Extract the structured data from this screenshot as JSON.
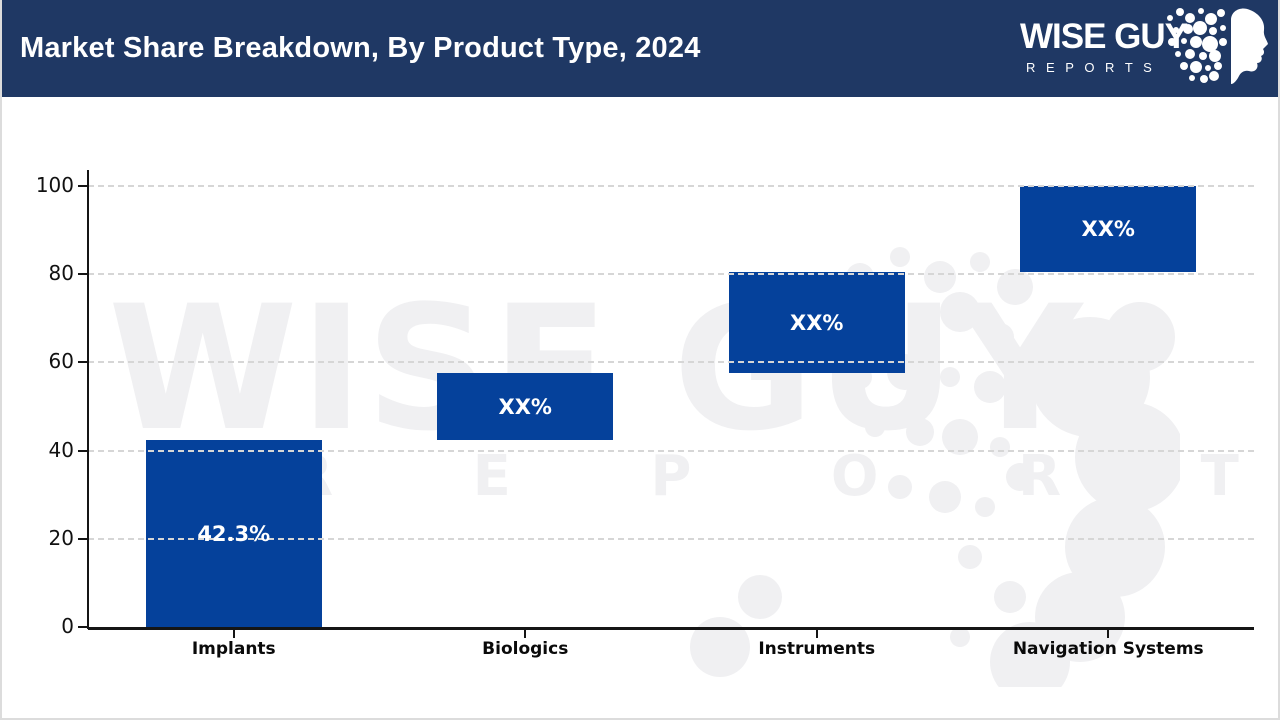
{
  "header": {
    "title": "Market Share Breakdown, By Product Type, 2024",
    "logo": {
      "line1": "WISE GUY",
      "line2": "R E P O R T S",
      "icon": "head-profile-dots-icon"
    },
    "bg_color": "#1f3864"
  },
  "watermark": {
    "line1": "WISE GUY",
    "line2": "R E P O R T S",
    "icon": "head-profile-dots-watermark"
  },
  "chart_data": {
    "type": "waterfall-bar",
    "title": "Market Share Breakdown, By Product Type, 2024",
    "categories": [
      "Implants",
      "Biologics",
      "Instruments",
      "Navigation Systems"
    ],
    "segments": [
      {
        "category": "Implants",
        "start": 0,
        "end": 42.3,
        "label": "42.3%"
      },
      {
        "category": "Biologics",
        "start": 42.3,
        "end": 57.5,
        "label": "XX%"
      },
      {
        "category": "Instruments",
        "start": 57.5,
        "end": 80.5,
        "label": "XX%"
      },
      {
        "category": "Navigation Systems",
        "start": 80.5,
        "end": 100,
        "label": "XX%"
      }
    ],
    "yticks": [
      0,
      20,
      40,
      60,
      80,
      100
    ],
    "ylim": [
      0,
      103.5
    ],
    "xlabel": "",
    "ylabel": "",
    "grid": "horizontal-dashed",
    "legend": "none",
    "bar_color": "#05419b",
    "bar_label_color": "#ffffff"
  },
  "colors": {
    "header_bg": "#1f3864",
    "bar": "#05419b",
    "grid": "#d6d6d6",
    "axis": "#151515",
    "watermark": "#f0f0f2",
    "frame": "#dcdcdc"
  }
}
